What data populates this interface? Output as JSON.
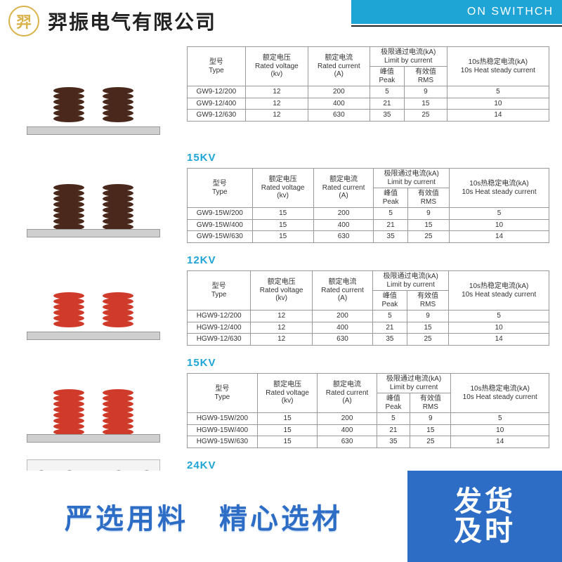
{
  "header": {
    "logo_text": "羿",
    "company": "羿振电气有限公司",
    "right_text": "ON SWITHCH"
  },
  "columns": {
    "type": {
      "zh": "型号",
      "en": "Type"
    },
    "voltage": {
      "zh": "额定电压",
      "en": "Rated voltage",
      "unit": "(kv)"
    },
    "current": {
      "zh": "额定电流",
      "en": "Rated current",
      "unit": "(A)"
    },
    "limit_group": {
      "zh": "极限通过电流(kA)",
      "en": "Limit by current"
    },
    "peak": {
      "zh": "峰值",
      "en": "Peak"
    },
    "rms": {
      "zh": "有效值",
      "en": "RMS"
    },
    "heat": {
      "zh": "10s热稳定电流(kA)",
      "en": "10s Heat steady current"
    }
  },
  "sections": [
    {
      "kv_label": "",
      "insulator_color": "brown",
      "disc_count": 6,
      "rows": [
        {
          "type": "GW9-12/200",
          "v": "12",
          "c": "200",
          "peak": "5",
          "rms": "9",
          "heat": "5"
        },
        {
          "type": "GW9-12/400",
          "v": "12",
          "c": "400",
          "peak": "21",
          "rms": "15",
          "heat": "10"
        },
        {
          "type": "GW9-12/630",
          "v": "12",
          "c": "630",
          "peak": "35",
          "rms": "25",
          "heat": "14"
        }
      ]
    },
    {
      "kv_label": "15KV",
      "insulator_color": "brown",
      "disc_count": 8,
      "rows": [
        {
          "type": "GW9-15W/200",
          "v": "15",
          "c": "200",
          "peak": "5",
          "rms": "9",
          "heat": "5"
        },
        {
          "type": "GW9-15W/400",
          "v": "15",
          "c": "400",
          "peak": "21",
          "rms": "15",
          "heat": "10"
        },
        {
          "type": "GW9-15W/630",
          "v": "15",
          "c": "630",
          "peak": "35",
          "rms": "25",
          "heat": "14"
        }
      ]
    },
    {
      "kv_label": "12KV",
      "insulator_color": "red",
      "disc_count": 6,
      "rows": [
        {
          "type": "HGW9-12/200",
          "v": "12",
          "c": "200",
          "peak": "5",
          "rms": "9",
          "heat": "5"
        },
        {
          "type": "HGW9-12/400",
          "v": "12",
          "c": "400",
          "peak": "21",
          "rms": "15",
          "heat": "10"
        },
        {
          "type": "HGW9-12/630",
          "v": "12",
          "c": "630",
          "peak": "35",
          "rms": "25",
          "heat": "14"
        }
      ]
    },
    {
      "kv_label": "15KV",
      "insulator_color": "red",
      "disc_count": 8,
      "rows": [
        {
          "type": "HGW9-15W/200",
          "v": "15",
          "c": "200",
          "peak": "5",
          "rms": "9",
          "heat": "5"
        },
        {
          "type": "HGW9-15W/400",
          "v": "15",
          "c": "400",
          "peak": "21",
          "rms": "15",
          "heat": "10"
        },
        {
          "type": "HGW9-15W/630",
          "v": "15",
          "c": "630",
          "peak": "35",
          "rms": "25",
          "heat": "14"
        }
      ]
    }
  ],
  "extra_kv": "24KV",
  "footer": {
    "left_line": "严选用料　精心选材",
    "right_line1": "发货",
    "right_line2": "及时"
  },
  "colors": {
    "accent_blue": "#1fa4d6",
    "deep_blue": "#2d6dc6",
    "brown": "#4a281b",
    "red": "#d03a2a",
    "copper": "#d6a86a"
  }
}
